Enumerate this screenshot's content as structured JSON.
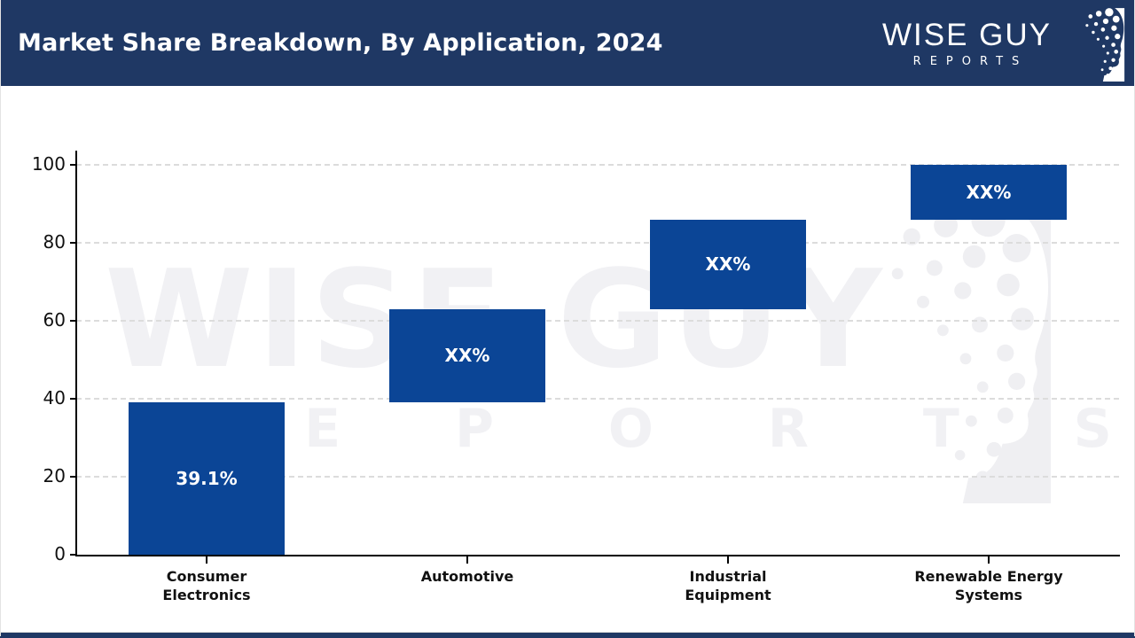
{
  "header": {
    "title": "Market Share Breakdown, By Application, 2024",
    "brand_line1": "WISE GUY",
    "brand_line2": "REPORTS"
  },
  "watermark": {
    "line1": "WISE GUY",
    "line2": "R E P O R T S"
  },
  "chart_data": {
    "type": "bar",
    "subtype": "floating-waterfall",
    "title": "Market Share Breakdown, By Application, 2024",
    "categories": [
      "Consumer Electronics",
      "Automotive",
      "Industrial Equipment",
      "Renewable Energy Systems"
    ],
    "category_lines": [
      [
        "Consumer",
        "Electronics"
      ],
      [
        "Automotive"
      ],
      [
        "Industrial",
        "Equipment"
      ],
      [
        "Renewable Energy",
        "Systems"
      ]
    ],
    "bars": [
      {
        "start": 0,
        "end": 39.1,
        "label": "39.1%"
      },
      {
        "start": 39.1,
        "end": 63,
        "label": "XX%"
      },
      {
        "start": 63,
        "end": 86,
        "label": "XX%"
      },
      {
        "start": 86,
        "end": 100,
        "label": "XX%"
      }
    ],
    "yticks": [
      0,
      20,
      40,
      60,
      80,
      100
    ],
    "ylim": [
      0,
      105
    ],
    "xlabel": "",
    "ylabel": "",
    "legend": "none",
    "grid": "dashed-horizontal",
    "bar_color": "#0b4596",
    "label_color": "#ffffff",
    "axis_color": "#000000",
    "header_color": "#1f3864"
  }
}
